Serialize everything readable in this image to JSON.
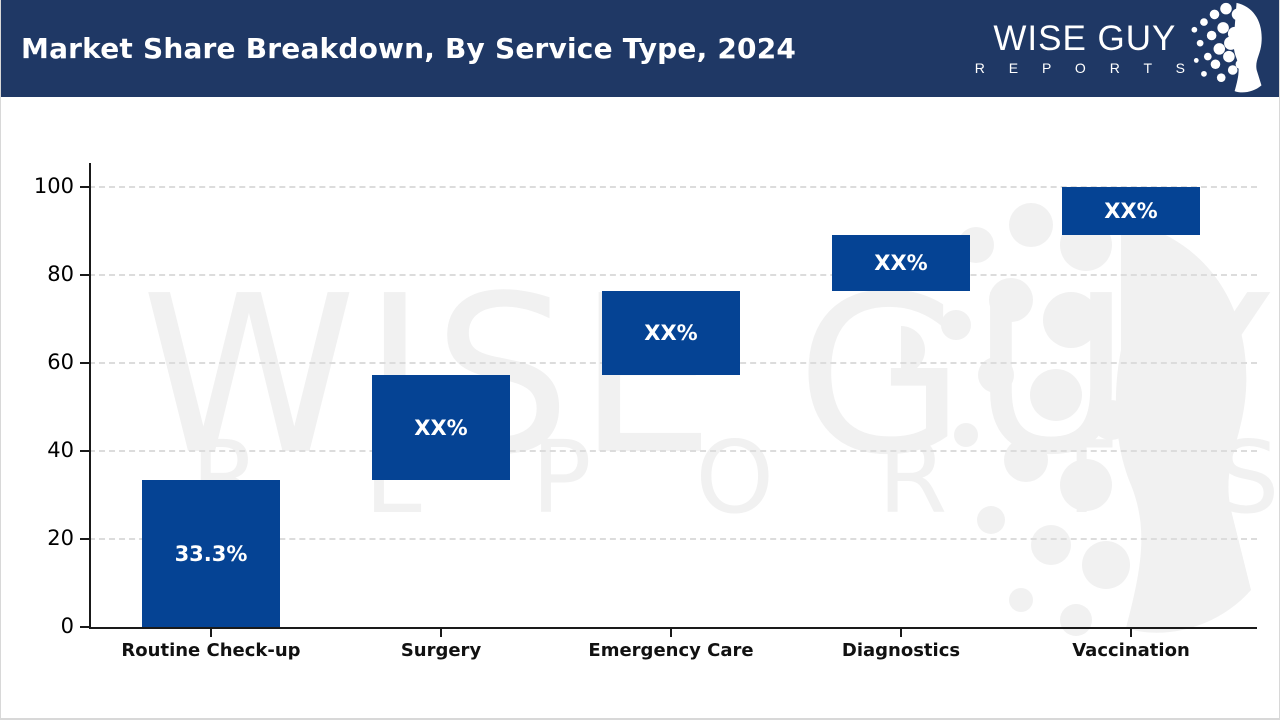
{
  "header": {
    "title": "Market Share Breakdown, By Service Type, 2024",
    "logo": {
      "primary": "WISE GUY",
      "secondary": "R E P O R T S"
    }
  },
  "watermark": {
    "primary": "WISE GUY",
    "secondary": "R E P O R T S"
  },
  "colors": {
    "header_bg": "#1F3865",
    "bar": "#054394",
    "grid": "#dcdcdc",
    "axis": "#1a1a1a",
    "bar_label_text": "#ffffff",
    "watermark": "#f1f1f1"
  },
  "chart_data": {
    "type": "bar",
    "subtype": "waterfall",
    "title": "Market Share Breakdown, By Service Type, 2024",
    "categories": [
      "Routine Check-up",
      "Surgery",
      "Emergency Care",
      "Diagnostics",
      "Vaccination"
    ],
    "segments": [
      {
        "category": "Routine Check-up",
        "start": 0,
        "end": 33.3,
        "label": "33.3%"
      },
      {
        "category": "Surgery",
        "start": 33.3,
        "end": 57.2,
        "label": "XX%"
      },
      {
        "category": "Emergency Care",
        "start": 57.2,
        "end": 76.4,
        "label": "XX%"
      },
      {
        "category": "Diagnostics",
        "start": 76.4,
        "end": 89.1,
        "label": "XX%"
      },
      {
        "category": "Vaccination",
        "start": 89.1,
        "end": 100,
        "label": "XX%"
      }
    ],
    "y_ticks": [
      0,
      20,
      40,
      60,
      80,
      100
    ],
    "ylim": [
      0,
      105
    ],
    "xlabel": "",
    "ylabel": "",
    "grid": "dashed-horizontal",
    "legend": "none",
    "bar_color": "#054394",
    "value_label_position": "center-of-bar"
  }
}
